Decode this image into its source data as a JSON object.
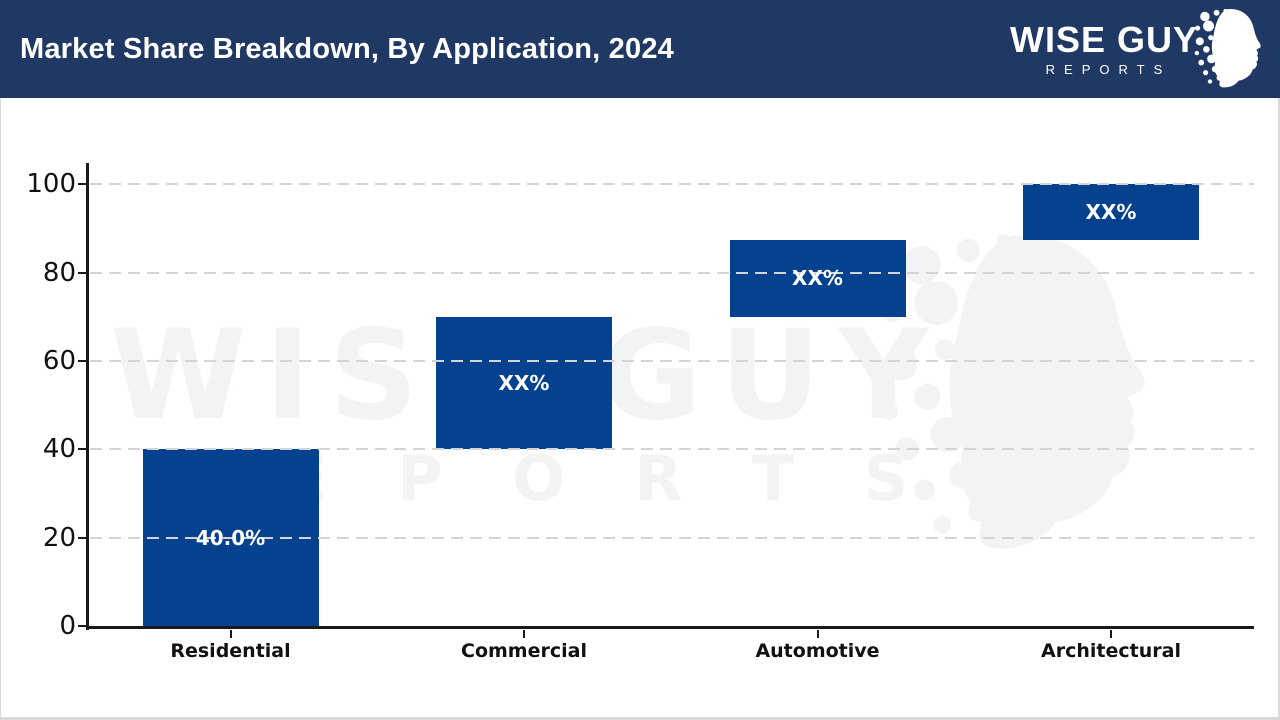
{
  "header": {
    "title": "Market Share Breakdown, By Application, 2024",
    "brand": {
      "name": "WISE GUY",
      "sub": "REPORTS"
    }
  },
  "watermark": {
    "line1": "WISE GUY",
    "line2": "R E P O R T S",
    "face_icon": "dotted-face-profile"
  },
  "colors": {
    "header_bg": "#1f3864",
    "bar": "#04418f",
    "grid": "#d4d4d4",
    "watermark": "#f2f3f5",
    "axis": "#1a1a1a",
    "bar_label": "#ffffff"
  },
  "chart_data": {
    "type": "bar",
    "subtype": "waterfall-stepped",
    "title": "Market Share Breakdown, By Application, 2024",
    "xlabel": "",
    "ylabel": "",
    "categories": [
      "Residential",
      "Commercial",
      "Automotive",
      "Architectural"
    ],
    "segments": [
      {
        "category": "Residential",
        "start": 0,
        "end": 40,
        "value": 40,
        "label": "40.0%"
      },
      {
        "category": "Commercial",
        "start": 40,
        "end": 70,
        "value": 30,
        "label": "XX%"
      },
      {
        "category": "Automotive",
        "start": 70,
        "end": 87.5,
        "value": 17.5,
        "label": "XX%"
      },
      {
        "category": "Architectural",
        "start": 87.5,
        "end": 100,
        "value": 12.5,
        "label": "XX%"
      }
    ],
    "yticks": [
      0,
      20,
      40,
      60,
      80,
      100
    ],
    "ylim": [
      0,
      105
    ],
    "grid": "dashed-horizontal-over-bars",
    "legend": "none"
  }
}
